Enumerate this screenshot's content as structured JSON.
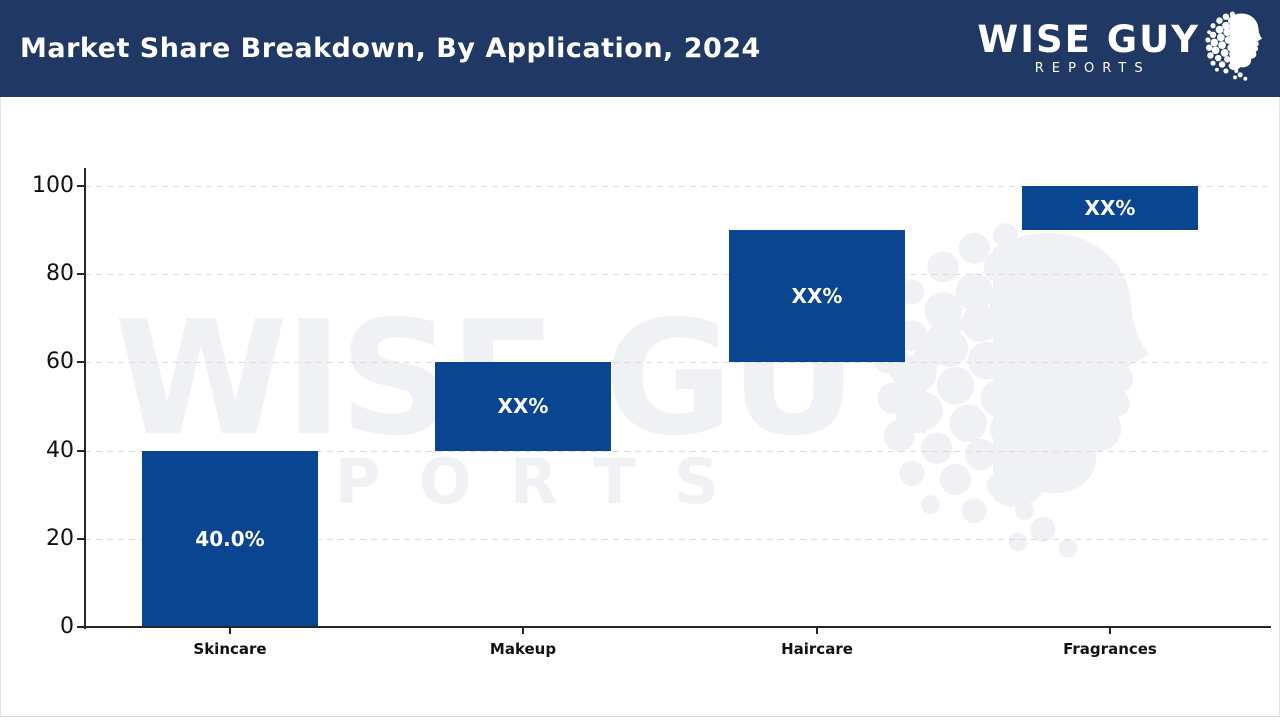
{
  "header": {
    "title": "Market Share Breakdown, By Application, 2024",
    "logo": {
      "line1": "WISE GUY",
      "line2": "REPORTS"
    }
  },
  "watermark": {
    "line1": "WISE GUY",
    "line2": "REPORTS"
  },
  "colors": {
    "header_bg": "#203864",
    "bar": "#094590",
    "bar_label": "#ffffff",
    "axis": "#262626",
    "gridline": "#dcdcdc",
    "watermark": "#f0f1f4"
  },
  "chart_data": {
    "type": "bar",
    "subtype": "waterfall",
    "title": "Market Share Breakdown, By Application, 2024",
    "categories": [
      "Skincare",
      "Makeup",
      "Haircare",
      "Fragrances"
    ],
    "segments": [
      {
        "category": "Skincare",
        "start": 0,
        "end": 40,
        "value": 40,
        "label": "40.0%"
      },
      {
        "category": "Makeup",
        "start": 40,
        "end": 60,
        "value": 20,
        "label": "XX%"
      },
      {
        "category": "Haircare",
        "start": 60,
        "end": 90,
        "value": 30,
        "label": "XX%"
      },
      {
        "category": "Fragrances",
        "start": 90,
        "end": 100,
        "value": 10,
        "label": "XX%"
      }
    ],
    "ylim": [
      0,
      100
    ],
    "yticks": [
      0,
      20,
      40,
      60,
      80,
      100
    ],
    "grid": true,
    "legend": false,
    "xlabel": "",
    "ylabel": ""
  }
}
